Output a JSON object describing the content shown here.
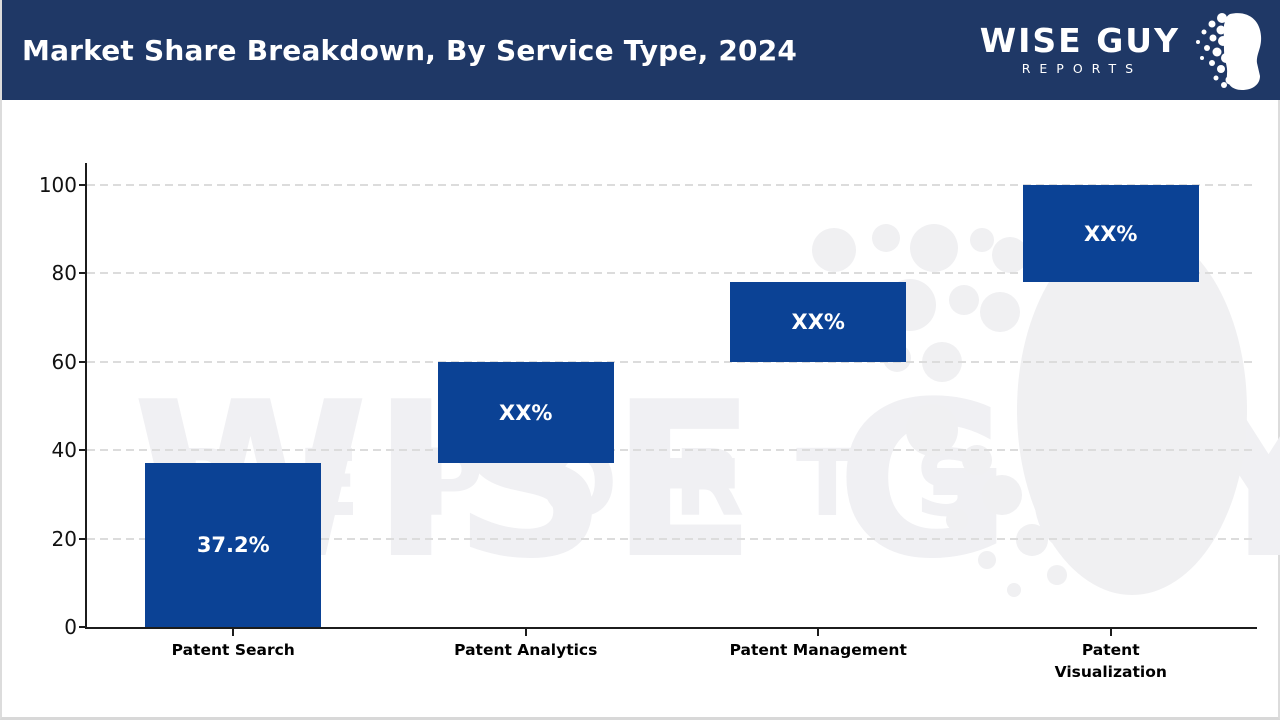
{
  "header": {
    "title": "Market Share Breakdown, By Service Type, 2024",
    "bg_color": "#1f3866",
    "logo": {
      "line1": "WISE GUY",
      "line2": "REPORTS"
    }
  },
  "watermark": {
    "line1": "WISE GUY",
    "line2": "REPORTS"
  },
  "chart_data": {
    "type": "bar",
    "subtype": "waterfall",
    "title": "Market Share Breakdown, By Service Type, 2024",
    "categories": [
      "Patent Search",
      "Patent Analytics",
      "Patent Management",
      "Patent Visualization"
    ],
    "segments": [
      {
        "category": "Patent Search",
        "start": 0,
        "end": 37.2,
        "label": "37.2%"
      },
      {
        "category": "Patent Analytics",
        "start": 37.2,
        "end": 60,
        "label": "XX%"
      },
      {
        "category": "Patent Management",
        "start": 60,
        "end": 78,
        "label": "XX%"
      },
      {
        "category": "Patent Visualization",
        "start": 78,
        "end": 100,
        "label": "XX%"
      }
    ],
    "yticks": [
      0,
      20,
      40,
      60,
      80,
      100
    ],
    "ylim": [
      0,
      100
    ],
    "grid": "horizontal-dashed",
    "legend": "none",
    "bar_color": "#0b4295",
    "bar_label_color": "#ffffff",
    "xlabel": "",
    "ylabel": ""
  }
}
